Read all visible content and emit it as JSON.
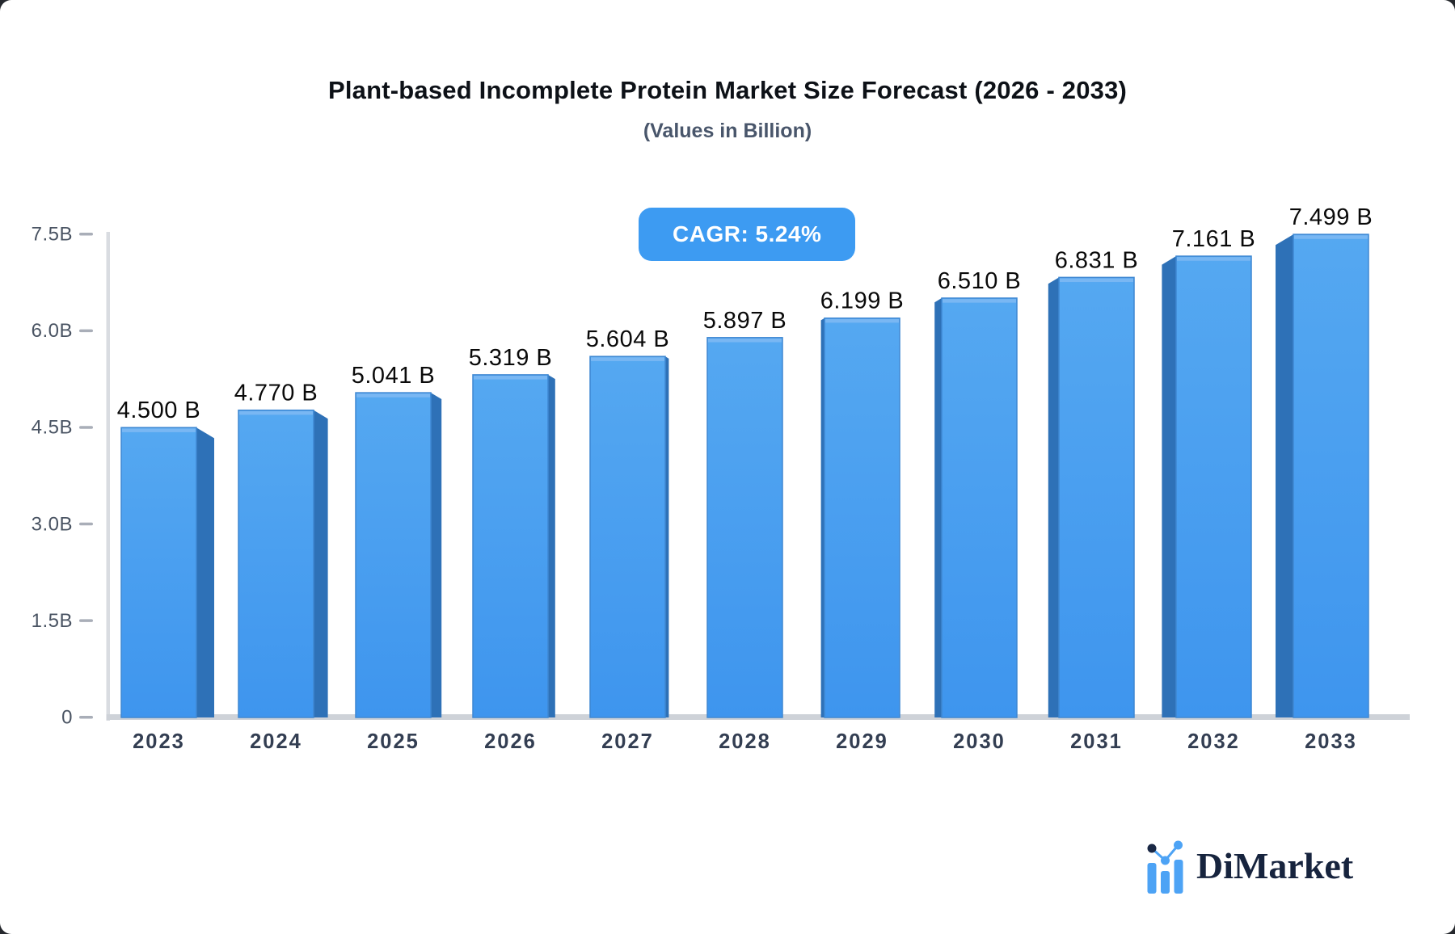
{
  "header": {
    "title": "Plant-based Incomplete Protein Market Size Forecast (2026 - 2033)",
    "subtitle": "(Values in Billion)"
  },
  "badge": {
    "label": "CAGR: 5.24%",
    "bg": "#3d9bf2",
    "text_color": "#ffffff"
  },
  "chart_data": {
    "type": "bar",
    "title": "Plant-based Incomplete Protein Market Size Forecast (2026 - 2033)",
    "subtitle": "(Values in Billion)",
    "xlabel": "",
    "ylabel": "",
    "categories": [
      "2023",
      "2024",
      "2025",
      "2026",
      "2027",
      "2028",
      "2029",
      "2030",
      "2031",
      "2032",
      "2033"
    ],
    "values": [
      4.5,
      4.77,
      5.041,
      5.319,
      5.604,
      5.897,
      6.199,
      6.51,
      6.831,
      7.161,
      7.499
    ],
    "value_labels": [
      "4.500 B",
      "4.770 B",
      "5.041 B",
      "5.319 B",
      "5.604 B",
      "5.897 B",
      "6.199 B",
      "6.510 B",
      "6.831 B",
      "7.161 B",
      "7.499 B"
    ],
    "unit": "B",
    "ylim": [
      0,
      7.5
    ],
    "yticks": {
      "labels": [
        "0",
        "1.5B",
        "3.0B",
        "4.5B",
        "6.0B",
        "7.5B"
      ],
      "values": [
        0,
        1.5,
        3.0,
        4.5,
        6.0,
        7.5
      ]
    },
    "grid": false,
    "legend_position": "none",
    "style": {
      "bar_front_top": "#55a8f1",
      "bar_front_bottom": "#3e95ee",
      "bar_front_edge": "#3e87d2",
      "bar_cap_highlight": "#79b7f3",
      "bar_side": "#2e71b7",
      "axis_line": "#d9dce1",
      "baseline": "#ced2d8",
      "tick_dash": "#a9aeb8",
      "tick_label_color": "#4a5463",
      "year_label_color": "#333e52",
      "value_label_color": "#0a0a0a"
    }
  },
  "logo": {
    "text": "DiMarket",
    "icon_blue": "#4da3f5",
    "icon_navy": "#1a2845",
    "text_color": "#17243e"
  }
}
